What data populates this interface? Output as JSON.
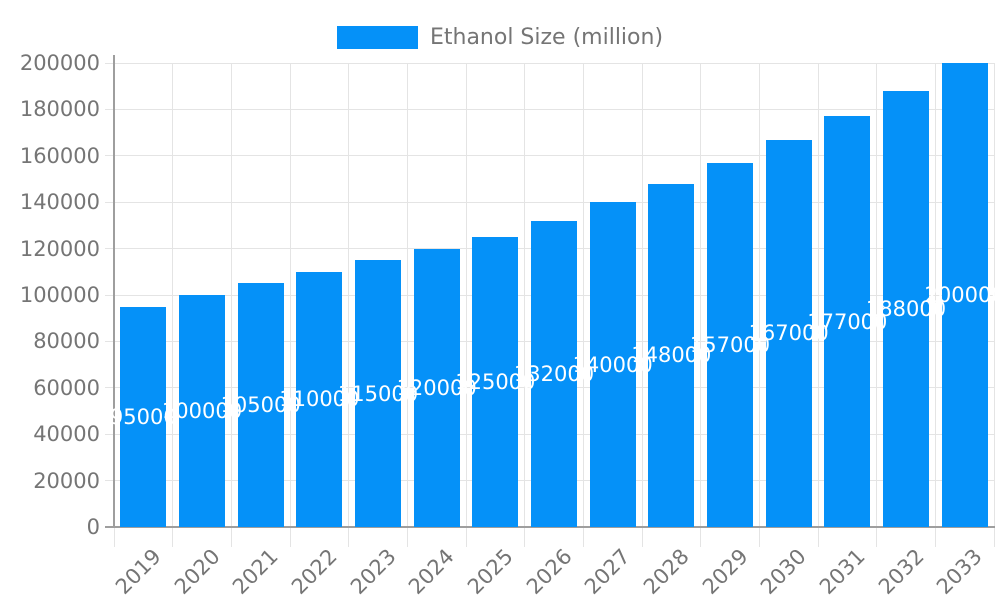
{
  "legend": {
    "label": "Ethanol Size (million)"
  },
  "colors": {
    "bar": "#0591f8",
    "grid": "#e4e4e4",
    "axis": "#9e9e9e",
    "text": "#757575",
    "bar_label": "#ffffff",
    "background": "#ffffff"
  },
  "chart_data": {
    "type": "bar",
    "title": "",
    "legend_position": "top",
    "legend_entries": [
      "Ethanol Size (million)"
    ],
    "categories": [
      "2019",
      "2020",
      "2021",
      "2022",
      "2023",
      "2024",
      "2025",
      "2026",
      "2027",
      "2028",
      "2029",
      "2030",
      "2031",
      "2032",
      "2033"
    ],
    "series": [
      {
        "name": "Ethanol Size (million)",
        "values": [
          95000,
          100000,
          105000,
          110000,
          115000,
          120000,
          125000,
          132000,
          140000,
          148000,
          157000,
          167000,
          177000,
          188000,
          200000
        ]
      }
    ],
    "bar_value_labels_visible": true,
    "xlabel": "",
    "ylabel": "",
    "ylim": [
      0,
      200000
    ],
    "yticks": [
      0,
      20000,
      40000,
      60000,
      80000,
      100000,
      120000,
      140000,
      160000,
      180000,
      200000
    ],
    "grid": true,
    "x_tick_rotation_deg": -45
  }
}
